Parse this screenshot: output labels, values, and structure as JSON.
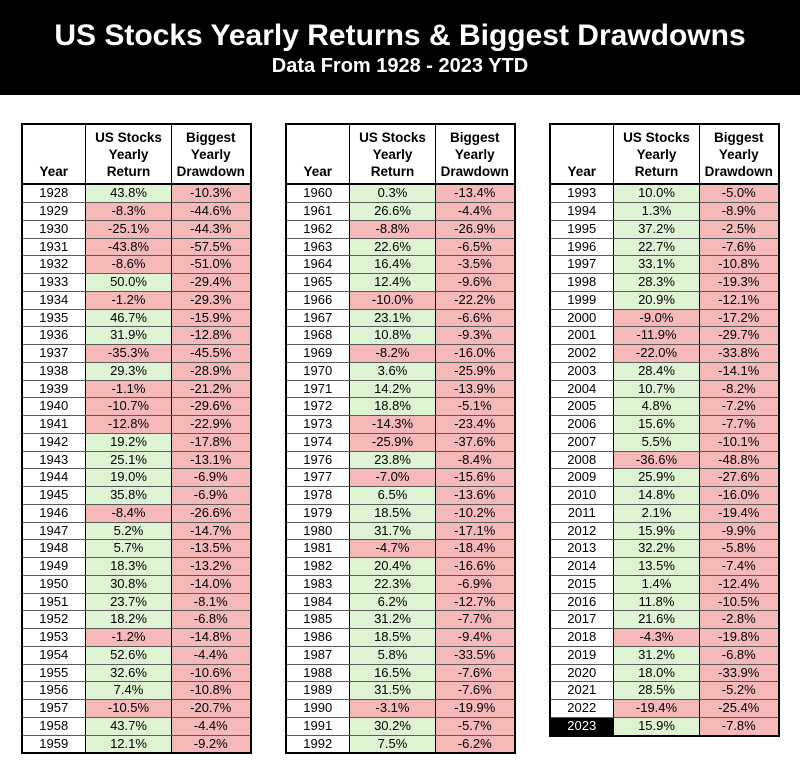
{
  "chart_data": {
    "type": "table",
    "title": "US Stocks Yearly Returns & Biggest Drawdowns",
    "subtitle": "Data From 1928 - 2023 YTD",
    "column_headers": {
      "year": "Year",
      "return": "US Stocks\nYearly\nReturn",
      "drawdown": "Biggest\nYearly\nDrawdown"
    },
    "colors": {
      "positive_bg": "#def2d4",
      "negative_bg": "#f5b9ba",
      "highlight_year_bg": "#000000",
      "highlight_year_text": "#ffffff"
    },
    "highlight_years": [
      "2023"
    ],
    "tables": [
      {
        "rows": [
          [
            "1928",
            "43.8%",
            "-10.3%"
          ],
          [
            "1929",
            "-8.3%",
            "-44.6%"
          ],
          [
            "1930",
            "-25.1%",
            "-44.3%"
          ],
          [
            "1931",
            "-43.8%",
            "-57.5%"
          ],
          [
            "1932",
            "-8.6%",
            "-51.0%"
          ],
          [
            "1933",
            "50.0%",
            "-29.4%"
          ],
          [
            "1934",
            "-1.2%",
            "-29.3%"
          ],
          [
            "1935",
            "46.7%",
            "-15.9%"
          ],
          [
            "1936",
            "31.9%",
            "-12.8%"
          ],
          [
            "1937",
            "-35.3%",
            "-45.5%"
          ],
          [
            "1938",
            "29.3%",
            "-28.9%"
          ],
          [
            "1939",
            "-1.1%",
            "-21.2%"
          ],
          [
            "1940",
            "-10.7%",
            "-29.6%"
          ],
          [
            "1941",
            "-12.8%",
            "-22.9%"
          ],
          [
            "1942",
            "19.2%",
            "-17.8%"
          ],
          [
            "1943",
            "25.1%",
            "-13.1%"
          ],
          [
            "1944",
            "19.0%",
            "-6.9%"
          ],
          [
            "1945",
            "35.8%",
            "-6.9%"
          ],
          [
            "1946",
            "-8.4%",
            "-26.6%"
          ],
          [
            "1947",
            "5.2%",
            "-14.7%"
          ],
          [
            "1948",
            "5.7%",
            "-13.5%"
          ],
          [
            "1949",
            "18.3%",
            "-13.2%"
          ],
          [
            "1950",
            "30.8%",
            "-14.0%"
          ],
          [
            "1951",
            "23.7%",
            "-8.1%"
          ],
          [
            "1952",
            "18.2%",
            "-6.8%"
          ],
          [
            "1953",
            "-1.2%",
            "-14.8%"
          ],
          [
            "1954",
            "52.6%",
            "-4.4%"
          ],
          [
            "1955",
            "32.6%",
            "-10.6%"
          ],
          [
            "1956",
            "7.4%",
            "-10.8%"
          ],
          [
            "1957",
            "-10.5%",
            "-20.7%"
          ],
          [
            "1958",
            "43.7%",
            "-4.4%"
          ],
          [
            "1959",
            "12.1%",
            "-9.2%"
          ]
        ]
      },
      {
        "rows": [
          [
            "1960",
            "0.3%",
            "-13.4%"
          ],
          [
            "1961",
            "26.6%",
            "-4.4%"
          ],
          [
            "1962",
            "-8.8%",
            "-26.9%"
          ],
          [
            "1963",
            "22.6%",
            "-6.5%"
          ],
          [
            "1964",
            "16.4%",
            "-3.5%"
          ],
          [
            "1965",
            "12.4%",
            "-9.6%"
          ],
          [
            "1966",
            "-10.0%",
            "-22.2%"
          ],
          [
            "1967",
            "23.1%",
            "-6.6%"
          ],
          [
            "1968",
            "10.8%",
            "-9.3%"
          ],
          [
            "1969",
            "-8.2%",
            "-16.0%"
          ],
          [
            "1970",
            "3.6%",
            "-25.9%"
          ],
          [
            "1971",
            "14.2%",
            "-13.9%"
          ],
          [
            "1972",
            "18.8%",
            "-5.1%"
          ],
          [
            "1973",
            "-14.3%",
            "-23.4%"
          ],
          [
            "1974",
            "-25.9%",
            "-37.6%"
          ],
          [
            "1976",
            "23.8%",
            "-8.4%"
          ],
          [
            "1977",
            "-7.0%",
            "-15.6%"
          ],
          [
            "1978",
            "6.5%",
            "-13.6%"
          ],
          [
            "1979",
            "18.5%",
            "-10.2%"
          ],
          [
            "1980",
            "31.7%",
            "-17.1%"
          ],
          [
            "1981",
            "-4.7%",
            "-18.4%"
          ],
          [
            "1982",
            "20.4%",
            "-16.6%"
          ],
          [
            "1983",
            "22.3%",
            "-6.9%"
          ],
          [
            "1984",
            "6.2%",
            "-12.7%"
          ],
          [
            "1985",
            "31.2%",
            "-7.7%"
          ],
          [
            "1986",
            "18.5%",
            "-9.4%"
          ],
          [
            "1987",
            "5.8%",
            "-33.5%"
          ],
          [
            "1988",
            "16.5%",
            "-7.6%"
          ],
          [
            "1989",
            "31.5%",
            "-7.6%"
          ],
          [
            "1990",
            "-3.1%",
            "-19.9%"
          ],
          [
            "1991",
            "30.2%",
            "-5.7%"
          ],
          [
            "1992",
            "7.5%",
            "-6.2%"
          ]
        ]
      },
      {
        "rows": [
          [
            "1993",
            "10.0%",
            "-5.0%"
          ],
          [
            "1994",
            "1.3%",
            "-8.9%"
          ],
          [
            "1995",
            "37.2%",
            "-2.5%"
          ],
          [
            "1996",
            "22.7%",
            "-7.6%"
          ],
          [
            "1997",
            "33.1%",
            "-10.8%"
          ],
          [
            "1998",
            "28.3%",
            "-19.3%"
          ],
          [
            "1999",
            "20.9%",
            "-12.1%"
          ],
          [
            "2000",
            "-9.0%",
            "-17.2%"
          ],
          [
            "2001",
            "-11.9%",
            "-29.7%"
          ],
          [
            "2002",
            "-22.0%",
            "-33.8%"
          ],
          [
            "2003",
            "28.4%",
            "-14.1%"
          ],
          [
            "2004",
            "10.7%",
            "-8.2%"
          ],
          [
            "2005",
            "4.8%",
            "-7.2%"
          ],
          [
            "2006",
            "15.6%",
            "-7.7%"
          ],
          [
            "2007",
            "5.5%",
            "-10.1%"
          ],
          [
            "2008",
            "-36.6%",
            "-48.8%"
          ],
          [
            "2009",
            "25.9%",
            "-27.6%"
          ],
          [
            "2010",
            "14.8%",
            "-16.0%"
          ],
          [
            "2011",
            "2.1%",
            "-19.4%"
          ],
          [
            "2012",
            "15.9%",
            "-9.9%"
          ],
          [
            "2013",
            "32.2%",
            "-5.8%"
          ],
          [
            "2014",
            "13.5%",
            "-7.4%"
          ],
          [
            "2015",
            "1.4%",
            "-12.4%"
          ],
          [
            "2016",
            "11.8%",
            "-10.5%"
          ],
          [
            "2017",
            "21.6%",
            "-2.8%"
          ],
          [
            "2018",
            "-4.3%",
            "-19.8%"
          ],
          [
            "2019",
            "31.2%",
            "-6.8%"
          ],
          [
            "2020",
            "18.0%",
            "-33.9%"
          ],
          [
            "2021",
            "28.5%",
            "-5.2%"
          ],
          [
            "2022",
            "-19.4%",
            "-25.4%"
          ],
          [
            "2023",
            "15.9%",
            "-7.8%"
          ]
        ]
      }
    ]
  }
}
